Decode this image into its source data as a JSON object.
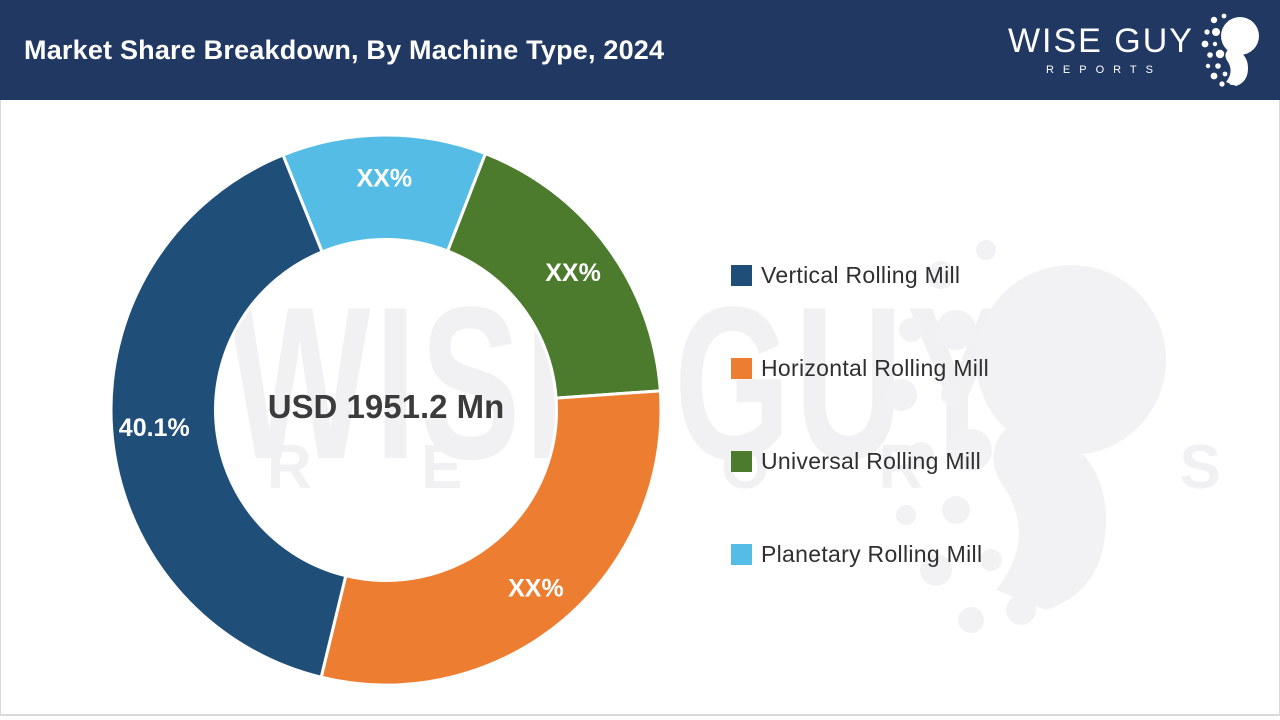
{
  "header": {
    "title": "Market Share Breakdown, By Machine Type, 2024",
    "logo": {
      "line1": "WISE GUY",
      "line2": "REPORTS"
    }
  },
  "chart_data": {
    "type": "pie",
    "subtype": "donut",
    "title": "Market Share Breakdown, By Machine Type, 2024",
    "center_label": "USD 1951.2 Mn",
    "start_angle_deg": -22,
    "donut_hole_ratio": 0.62,
    "label_radius_ratio": 0.845,
    "segments": [
      {
        "name": "Planetary Rolling Mill",
        "value": 12.0,
        "display_label": "XX%",
        "color": "#55bde5"
      },
      {
        "name": "Universal Rolling Mill",
        "value": 18.0,
        "display_label": "XX%",
        "color": "#4d7b2d"
      },
      {
        "name": "Horizontal Rolling Mill",
        "value": 29.9,
        "display_label": "XX%",
        "color": "#ed7d31"
      },
      {
        "name": "Vertical Rolling Mill",
        "value": 40.1,
        "display_label": "40.1%",
        "color": "#1f4e79"
      }
    ],
    "legend_position": "right"
  },
  "legend": {
    "items": [
      {
        "label": "Vertical Rolling Mill",
        "color": "#1f4e79"
      },
      {
        "label": "Horizontal Rolling Mill",
        "color": "#ed7d31"
      },
      {
        "label": "Universal Rolling Mill",
        "color": "#4d7b2d"
      },
      {
        "label": "Planetary Rolling Mill",
        "color": "#55bde5"
      }
    ]
  },
  "watermark": {
    "line1": "WISE GUY",
    "line2": "R E P O R T S"
  },
  "colors": {
    "header_bg": "#203862",
    "center_text": "#3b3b3b"
  }
}
